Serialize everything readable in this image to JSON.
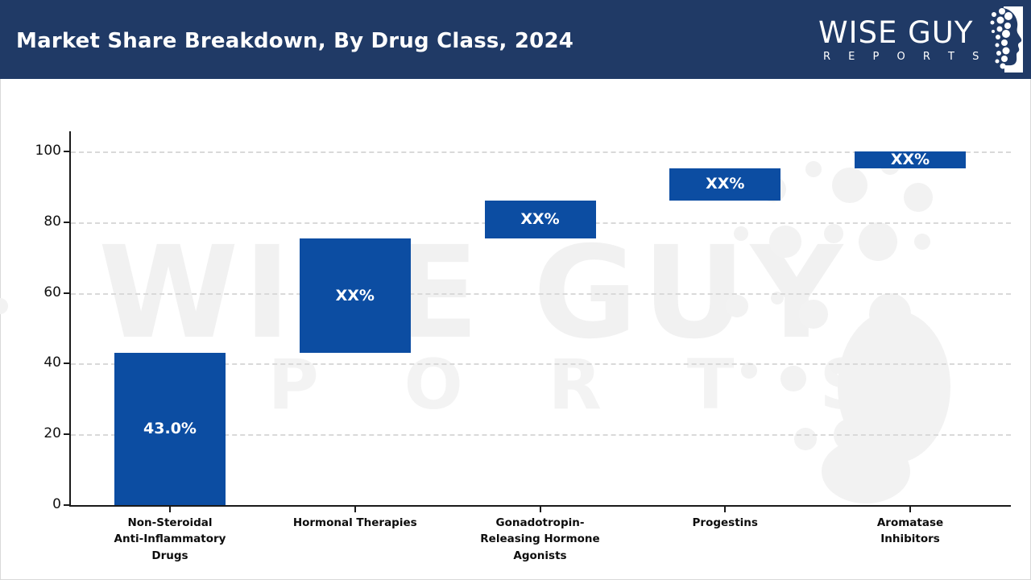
{
  "header": {
    "title": "Market Share Breakdown, By Drug Class, 2024",
    "logo": {
      "line1": "WISE GUY",
      "line2": "R E P O R T S"
    }
  },
  "watermark": {
    "line1": "WISE GUY",
    "line2": "E P O R T S",
    "color": "#f1f1f1"
  },
  "colors": {
    "header_bg": "#203a66",
    "bar_blue": "#0c4da2",
    "gridline": "#d9d9d9",
    "axis": "#1a1a1a",
    "label_white": "#ffffff"
  },
  "chart_data": {
    "type": "bar",
    "subtype": "waterfall",
    "title": "Market Share Breakdown, By Drug Class, 2024",
    "xlabel": "",
    "ylabel": "",
    "ylim": [
      0,
      105
    ],
    "yticks": [
      0,
      20,
      40,
      60,
      80,
      100
    ],
    "grid": "dashed horizontal",
    "legend": "none",
    "categories": [
      "Non-Steroidal Anti-Inflammatory Drugs",
      "Hormonal Therapies",
      "Gonadotropin-Releasing Hormone Agonists",
      "Progestins",
      "Aromatase Inhibitors"
    ],
    "category_lines": [
      [
        "Non-Steroidal",
        "Anti-Inflammatory",
        "Drugs"
      ],
      [
        "Hormonal Therapies"
      ],
      [
        "Gonadotropin-",
        "Releasing Hormone",
        "Agonists"
      ],
      [
        "Progestins"
      ],
      [
        "Aromatase",
        "Inhibitors"
      ]
    ],
    "segments": [
      {
        "label": "43.0%",
        "start": 0,
        "end": 43.0,
        "value": 43.0
      },
      {
        "label": "XX%",
        "start": 43.0,
        "end": 75.4,
        "value": 32.4
      },
      {
        "label": "XX%",
        "start": 75.4,
        "end": 86.2,
        "value": 10.8
      },
      {
        "label": "XX%",
        "start": 86.2,
        "end": 95.2,
        "value": 9.0
      },
      {
        "label": "XX%",
        "start": 95.2,
        "end": 100.0,
        "value": 4.8
      }
    ]
  }
}
